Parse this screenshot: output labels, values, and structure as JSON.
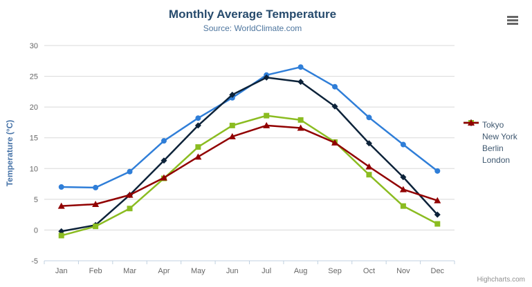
{
  "chart_data": {
    "type": "line",
    "title": "Monthly Average Temperature",
    "subtitle": "Source: WorldClimate.com",
    "xlabel": "",
    "ylabel": "Temperature (°C)",
    "categories": [
      "Jan",
      "Feb",
      "Mar",
      "Apr",
      "May",
      "Jun",
      "Jul",
      "Aug",
      "Sep",
      "Oct",
      "Nov",
      "Dec"
    ],
    "ylim": [
      -5,
      30
    ],
    "ytick_interval": 5,
    "grid": true,
    "legend_position": "right",
    "series": [
      {
        "name": "Tokyo",
        "color": "#2f7ed8",
        "marker": "circle",
        "values": [
          7.0,
          6.9,
          9.5,
          14.5,
          18.2,
          21.5,
          25.2,
          26.5,
          23.3,
          18.3,
          13.9,
          9.6
        ]
      },
      {
        "name": "New York",
        "color": "#0d233a",
        "marker": "diamond",
        "values": [
          -0.2,
          0.8,
          5.7,
          11.3,
          17.0,
          22.0,
          24.8,
          24.1,
          20.1,
          14.1,
          8.6,
          2.5
        ]
      },
      {
        "name": "Berlin",
        "color": "#8bbc21",
        "marker": "square",
        "values": [
          -0.9,
          0.6,
          3.5,
          8.4,
          13.5,
          17.0,
          18.6,
          17.9,
          14.3,
          9.0,
          3.9,
          1.0
        ]
      },
      {
        "name": "London",
        "color": "#910000",
        "marker": "triangle",
        "values": [
          3.9,
          4.2,
          5.7,
          8.5,
          11.9,
          15.2,
          17.0,
          16.6,
          14.2,
          10.3,
          6.6,
          4.8
        ]
      }
    ],
    "credits": "Highcharts.com",
    "colors": {
      "title": "#274b6d",
      "subtitle": "#4d759e",
      "axis_title": "#4572a7",
      "tick_label": "#666666",
      "grid_line": "#d8d8d8",
      "axis_line": "#c0d0e0",
      "legend_text": "#3e576f",
      "credits_text": "#909090",
      "menu_icon": "#666666",
      "background": "#ffffff"
    }
  }
}
